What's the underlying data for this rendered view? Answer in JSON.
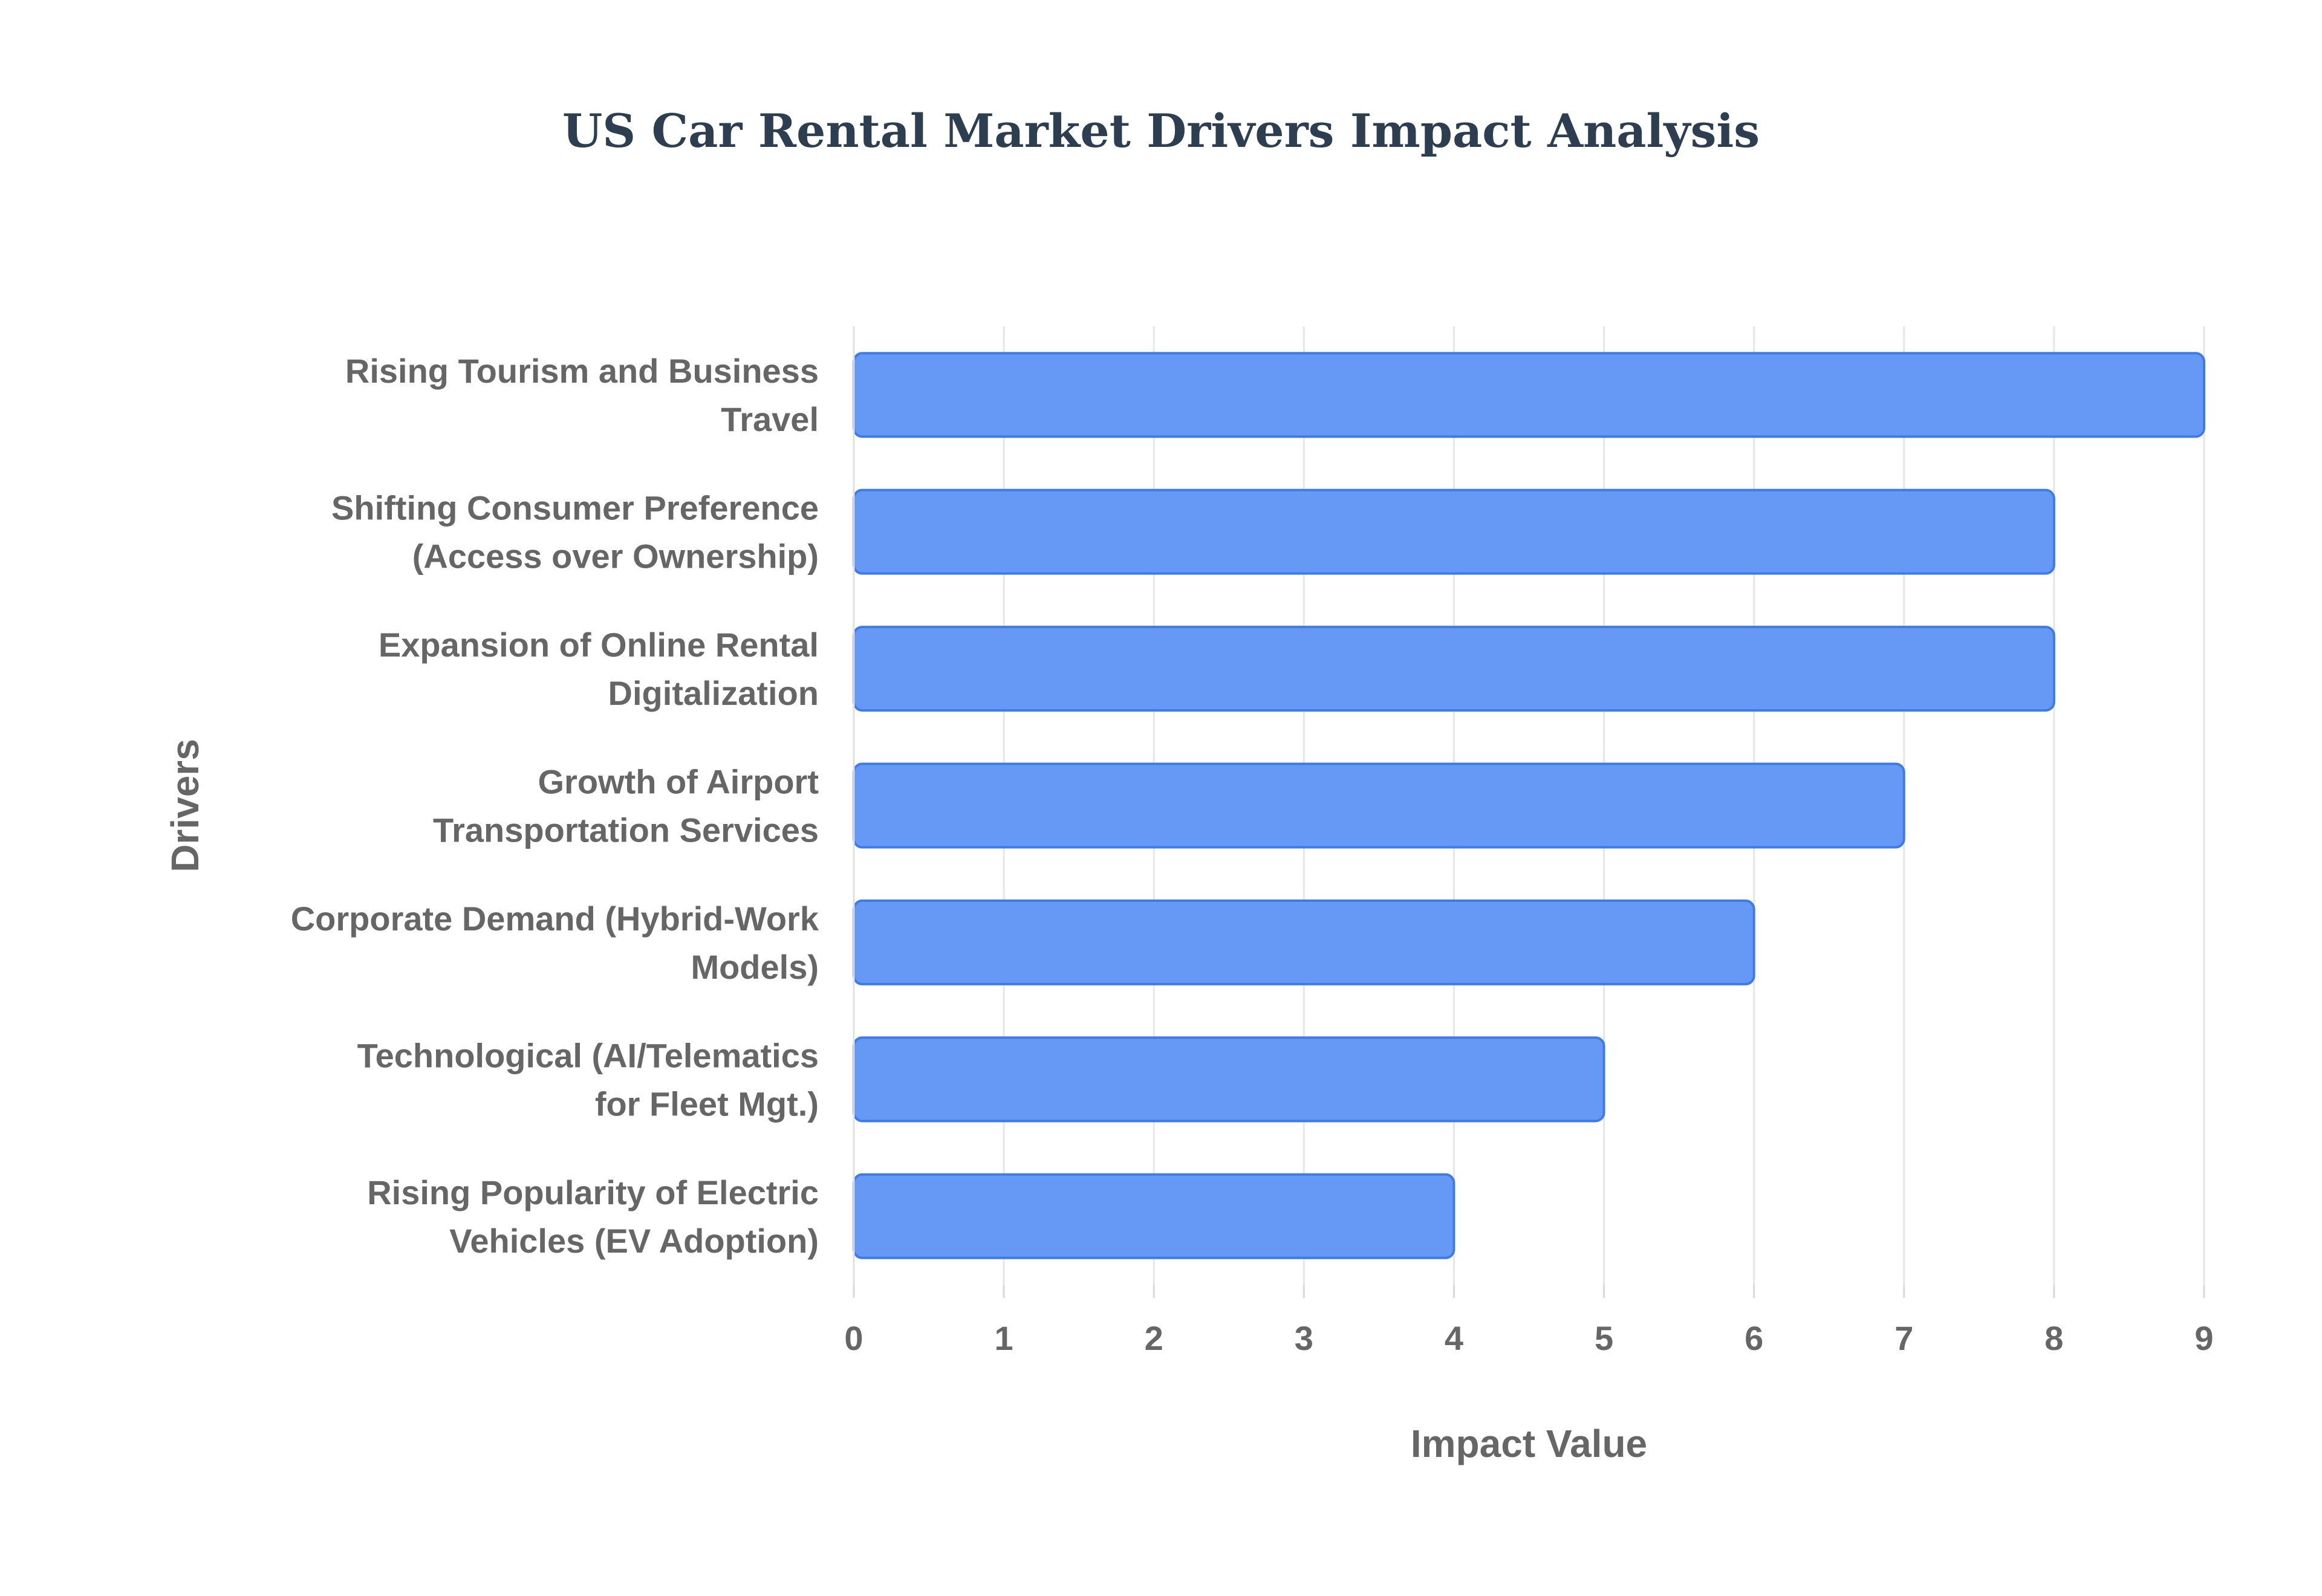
{
  "chart_data": {
    "type": "bar",
    "orientation": "horizontal",
    "title": "US Car Rental Market Drivers Impact Analysis",
    "xlabel": "Impact Value",
    "ylabel": "Drivers",
    "xlim": [
      0,
      9
    ],
    "x_ticks": [
      0,
      1,
      2,
      3,
      4,
      5,
      6,
      7,
      8,
      9
    ],
    "grid": true,
    "legend": "none",
    "bar_color": "#6699f5",
    "bar_border_color": "#3f7be8",
    "categories": [
      [
        "Rising Tourism and Business",
        "Travel"
      ],
      [
        "Shifting Consumer Preference",
        "(Access over Ownership)"
      ],
      [
        "Expansion of Online Rental",
        "Digitalization"
      ],
      [
        "Growth of Airport",
        "Transportation Services"
      ],
      [
        "Corporate Demand (Hybrid-Work",
        "Models)"
      ],
      [
        "Technological (AI/Telematics",
        "for Fleet Mgt.)"
      ],
      [
        "Rising Popularity of Electric",
        "Vehicles (EV Adoption)"
      ]
    ],
    "values": [
      9,
      8,
      8,
      7,
      6,
      5,
      4
    ]
  }
}
